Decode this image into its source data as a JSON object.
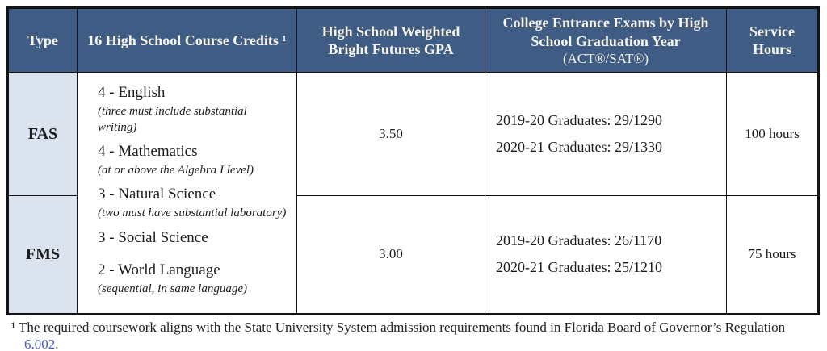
{
  "colors": {
    "header-bg": "#3e5c84",
    "header-text": "#f7f4ea",
    "type-col-bg": "#dbe3ef",
    "border": "#141414",
    "link": "#4a5ac5"
  },
  "table": {
    "headers": {
      "type": "Type",
      "credits": "16 High School Course Credits ¹",
      "gpa": "High School Weighted Bright Futures GPA",
      "exams_main": "College Entrance Exams by High School Graduation Year",
      "exams_sub": "(ACT®/SAT®)",
      "service": "Service Hours"
    },
    "credits": [
      {
        "credit": "4 - English",
        "note": "(three must include substantial writing)"
      },
      {
        "credit": "4 - Mathematics",
        "note": "(at or above the Algebra I level)"
      },
      {
        "credit": "3 - Natural Science",
        "note": "(two must have substantial laboratory)"
      },
      {
        "credit": "3 - Social Science",
        "note": ""
      },
      {
        "credit": "2 - World Language",
        "note": "(sequential, in same language)"
      }
    ],
    "rows": [
      {
        "type": "FAS",
        "gpa": "3.50",
        "exams": [
          "2019-20 Graduates: 29/1290",
          "2020-21 Graduates: 29/1330"
        ],
        "service": "100 hours"
      },
      {
        "type": "FMS",
        "gpa": "3.00",
        "exams": [
          "2019-20 Graduates: 26/1170",
          "2020-21 Graduates: 25/1210"
        ],
        "service": "75 hours"
      }
    ]
  },
  "footnote": {
    "text": "¹ The required coursework aligns with the State University System admission requirements found in Florida Board of Governor’s Regulation ",
    "link_text": "6.002",
    "suffix": "."
  }
}
